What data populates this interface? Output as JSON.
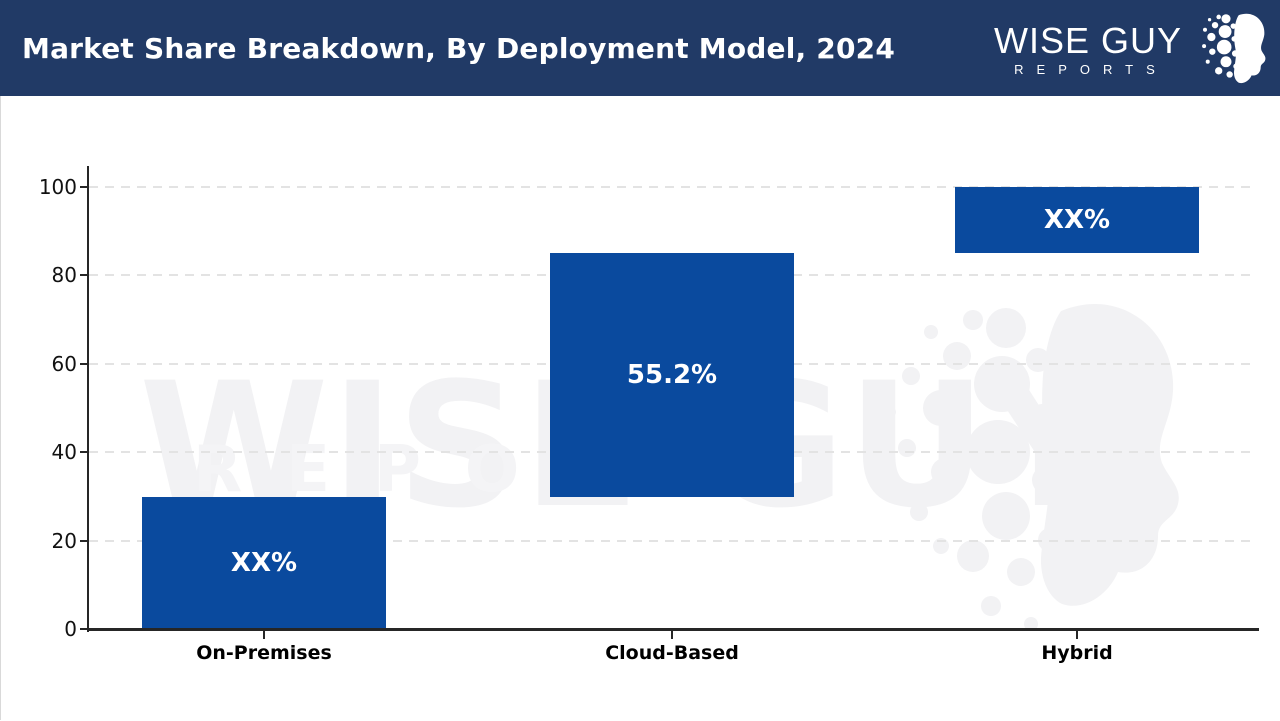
{
  "header": {
    "title": "Market Share Breakdown, By Deployment Model, 2024",
    "background_color": "#213A66",
    "logo": {
      "name": "Wise Guy Reports",
      "line1": "WISE GUY",
      "line2": "REPORTS",
      "icon": "dotted-head-profile-icon",
      "color": "#FFFFFF"
    }
  },
  "watermark": {
    "line1": "WISE GUY",
    "line2": "REPORTS",
    "icon": "dotted-head-profile-icon",
    "color": "#F2F2F4"
  },
  "chart_data": {
    "type": "bar",
    "subtype": "floating-segment-waterfall",
    "title": "Market Share Breakdown, By Deployment Model, 2024",
    "categories": [
      "On-Premises",
      "Cloud-Based",
      "Hybrid"
    ],
    "segments": [
      {
        "category": "On-Premises",
        "from": 0,
        "to": 29.8,
        "label": "XX%"
      },
      {
        "category": "Cloud-Based",
        "from": 29.8,
        "to": 85.0,
        "label": "55.2%"
      },
      {
        "category": "Hybrid",
        "from": 85.0,
        "to": 100.0,
        "label": "XX%"
      }
    ],
    "ylim": [
      0,
      100
    ],
    "yticks": [
      0,
      20,
      40,
      60,
      80,
      100
    ],
    "xlabel": "",
    "ylabel": "",
    "grid": "horizontal-dashed",
    "legend": "none",
    "bar_color": "#0A4A9E",
    "bar_label_color": "#FFFFFF",
    "axis_color": "#262626",
    "gridline_color": "#E3E3E3",
    "tick_label_color": "#111111"
  }
}
